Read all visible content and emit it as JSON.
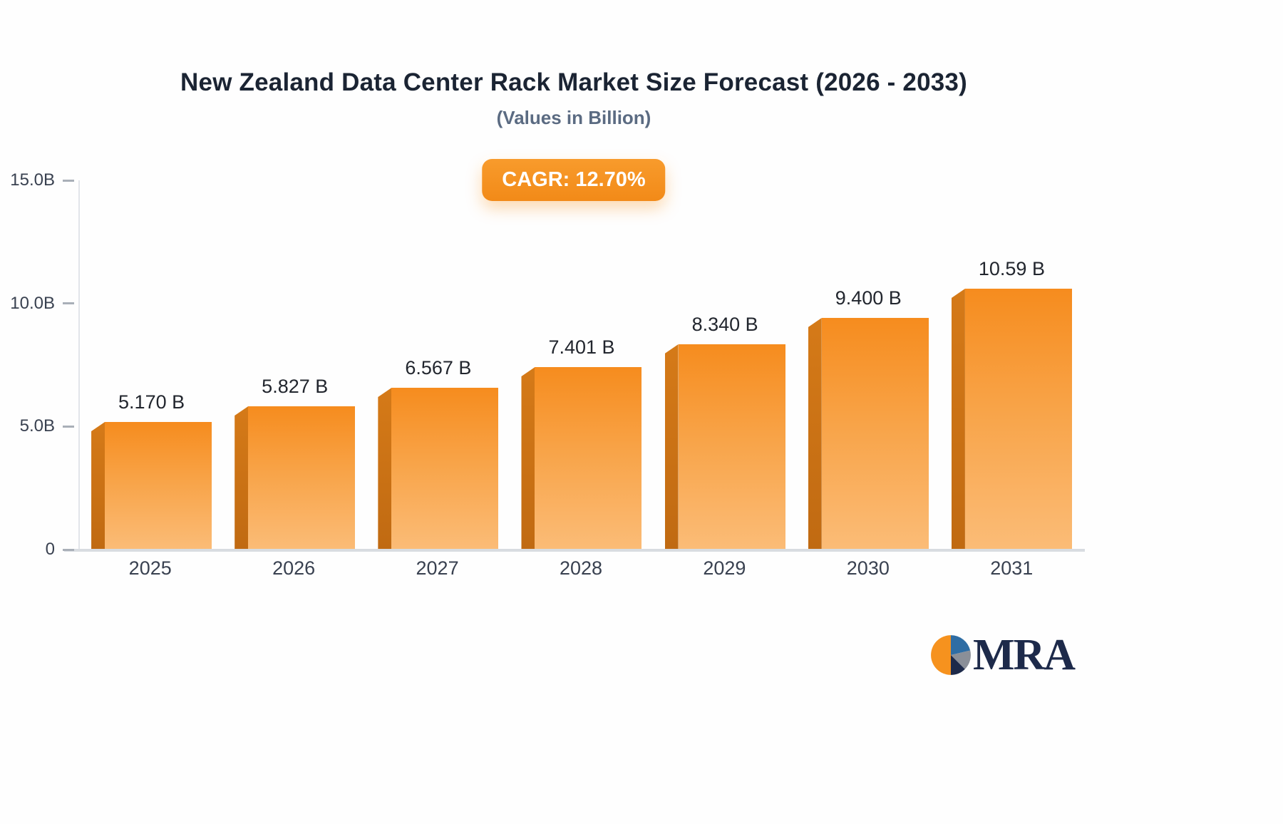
{
  "title": "New Zealand Data Center Rack Market Size Forecast (2026 - 2033)",
  "subtitle": "(Values in Billion)",
  "badge": {
    "label": "CAGR: 12.70%"
  },
  "chart_data": {
    "type": "bar",
    "title": "New Zealand Data Center Rack Market Size Forecast (2026 - 2033)",
    "subtitle": "(Values in Billion)",
    "categories": [
      "2025",
      "2026",
      "2027",
      "2028",
      "2029",
      "2030",
      "2031"
    ],
    "values": [
      5.17,
      5.827,
      6.567,
      7.401,
      8.34,
      9.4,
      10.59
    ],
    "value_labels": [
      "5.170 B",
      "5.827 B",
      "6.567 B",
      "7.401 B",
      "8.340 B",
      "9.400 B",
      "10.59 B"
    ],
    "cagr": "CAGR: 12.70%",
    "xlabel": "",
    "ylabel": "",
    "ylim": [
      0,
      15
    ],
    "yticks": [
      {
        "value": 0,
        "label": "0"
      },
      {
        "value": 5,
        "label": "5.0B"
      },
      {
        "value": 10,
        "label": "10.0B"
      },
      {
        "value": 15,
        "label": "15.0B"
      }
    ],
    "grid": false,
    "legend": false,
    "bar_colors": {
      "face_top": "#f68c1e",
      "face_bottom": "#fbbc77",
      "side": "#c97115"
    }
  },
  "logo": {
    "text": "MRA"
  },
  "colors": {
    "accent_orange": "#f6921e",
    "title_text": "#1b2433",
    "subtitle_text": "#5b6b82",
    "axis_text": "#394150"
  }
}
